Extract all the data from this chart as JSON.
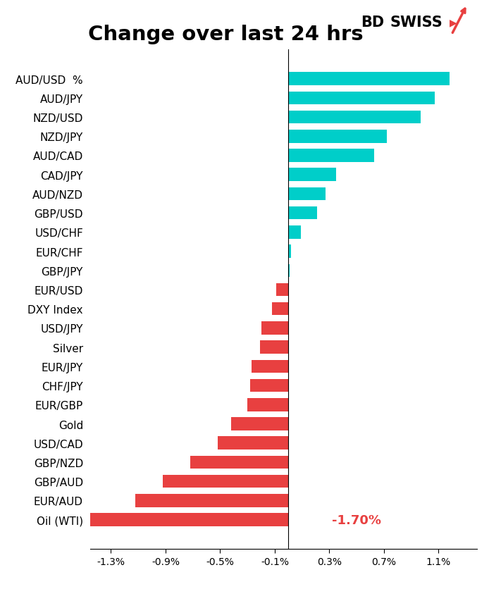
{
  "title": "Change over last 24 hrs",
  "title_fontsize": 21,
  "categories": [
    "AUD/USD  %",
    "AUD/JPY",
    "NZD/USD",
    "NZD/JPY",
    "AUD/CAD",
    "CAD/JPY",
    "AUD/NZD",
    "GBP/USD",
    "USD/CHF",
    "EUR/CHF",
    "GBP/JPY",
    "EUR/USD",
    "DXY Index",
    "USD/JPY",
    "Silver",
    "EUR/JPY",
    "CHF/JPY",
    "EUR/GBP",
    "Gold",
    "USD/CAD",
    "GBP/NZD",
    "GBP/AUD",
    "EUR/AUD",
    "Oil (WTI)"
  ],
  "values": [
    1.18,
    1.07,
    0.97,
    0.72,
    0.63,
    0.35,
    0.27,
    0.21,
    0.09,
    0.02,
    0.01,
    -0.09,
    -0.12,
    -0.2,
    -0.21,
    -0.27,
    -0.28,
    -0.3,
    -0.42,
    -0.52,
    -0.72,
    -0.92,
    -1.12,
    -1.7
  ],
  "bar_color_positive": "#00CEC9",
  "bar_color_negative": "#E84040",
  "annotation_text": "-1.70%",
  "annotation_color": "#E84040",
  "annotation_fontsize": 13,
  "xlim": [
    -1.45,
    1.38
  ],
  "xticks": [
    -1.3,
    -0.9,
    -0.5,
    -0.1,
    0.3,
    0.7,
    1.1
  ],
  "xtick_labels": [
    "-1.3%",
    "-0.9%",
    "-0.5%",
    "-0.1%",
    "0.3%",
    "0.7%",
    "1.1%"
  ],
  "background_color": "#FFFFFF",
  "tick_fontsize": 10,
  "label_fontsize": 11,
  "bar_height": 0.68
}
